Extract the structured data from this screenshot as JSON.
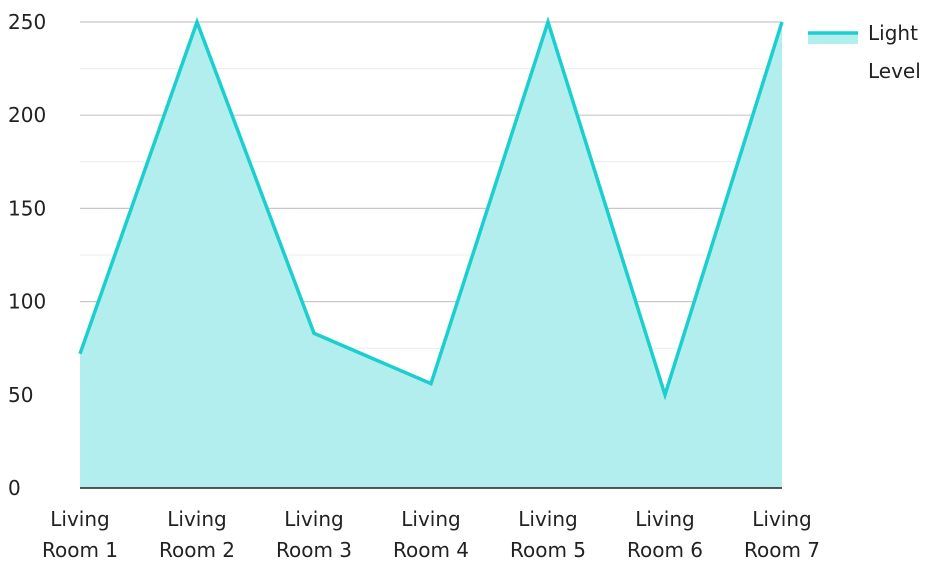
{
  "chart_data": {
    "type": "area",
    "title": "",
    "xlabel": "",
    "ylabel": "",
    "categories": [
      [
        "Living",
        "Room 1"
      ],
      [
        "Living",
        "Room 2"
      ],
      [
        "Living",
        "Room 3"
      ],
      [
        "Living",
        "Room 4"
      ],
      [
        "Living",
        "Room 5"
      ],
      [
        "Living",
        "Room 6"
      ],
      [
        "Living",
        "Room 7"
      ]
    ],
    "series": [
      {
        "name": "Light Level",
        "name_lines": [
          "Light",
          "Level"
        ],
        "values": [
          72,
          250,
          83,
          56,
          250,
          50,
          250
        ],
        "line_color": "#1ccfcf",
        "fill_color": "#b2eeee"
      }
    ],
    "ylim": [
      0,
      250
    ],
    "yticks": [
      0,
      50,
      100,
      150,
      200,
      250
    ],
    "grid": true,
    "legend_position": "top-right"
  }
}
